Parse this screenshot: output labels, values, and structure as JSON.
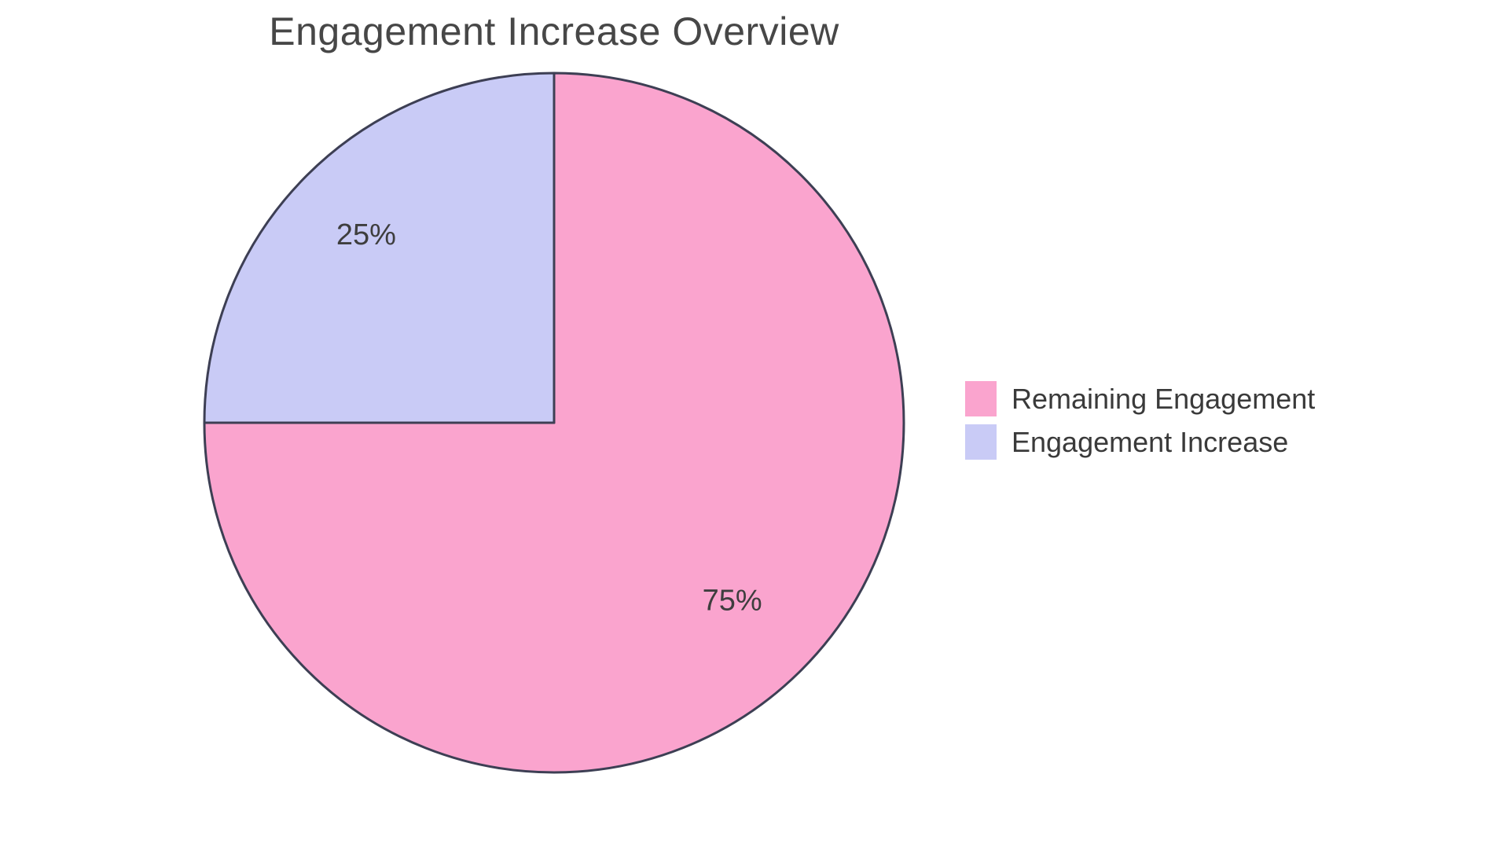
{
  "chart_data": {
    "type": "pie",
    "title": "Engagement Increase Overview",
    "slices": [
      {
        "label": "Remaining Engagement",
        "value": 75,
        "display": "75%",
        "color": "#FAA4CE"
      },
      {
        "label": "Engagement Increase",
        "value": 25,
        "display": "25%",
        "color": "#C9CBF6"
      }
    ],
    "start_angle_deg": 0,
    "direction": "clockwise",
    "stroke_color": "#3D3F54",
    "stroke_width": 3,
    "slice_label_color": "#3E3E3E",
    "legend_position": "right",
    "background": "#FFFFFF",
    "title_color": "#474747",
    "legend_text_color": "#3A3A3A"
  }
}
